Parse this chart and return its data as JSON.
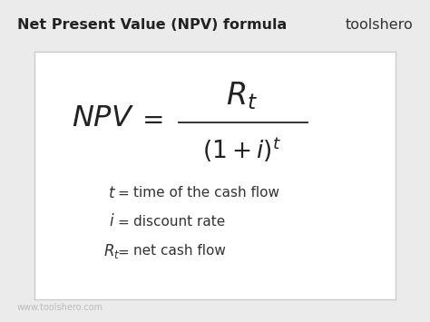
{
  "title": "Net Present Value (NPV) formula",
  "brand": "toolshero",
  "watermark": "www.toolshero.com",
  "bg_color": "#ebebeb",
  "box_bg_color": "#ffffff",
  "title_color": "#222222",
  "brand_color": "#333333",
  "watermark_color": "#bbbbbb",
  "accent_line_color": "#5ecece",
  "formula_color": "#222222",
  "def_color": "#333333",
  "title_fontsize": 11.5,
  "brand_fontsize": 11.5,
  "watermark_fontsize": 7,
  "npv_fontsize": 23,
  "rt_num_fontsize": 24,
  "denom_fontsize": 19,
  "def_var_fontsize": 12,
  "def_text_fontsize": 11
}
